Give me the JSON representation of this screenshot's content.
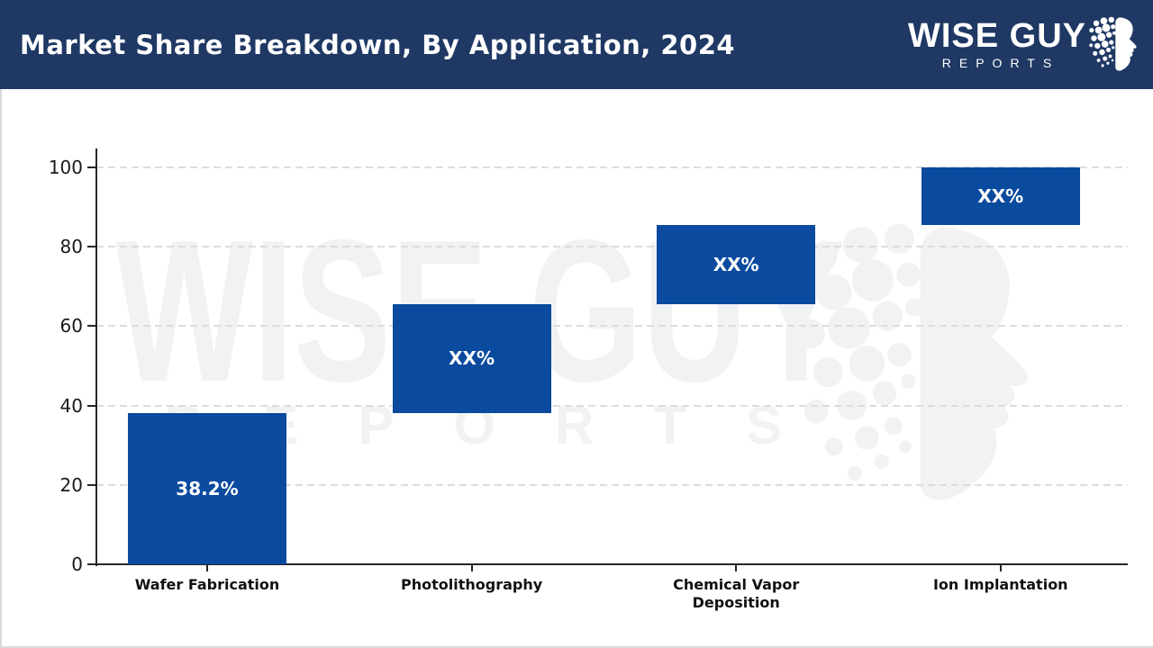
{
  "header": {
    "title": "Market Share Breakdown, By Application, 2024",
    "logo": {
      "line1": "WISE GUY",
      "line2": "REPORTS"
    }
  },
  "watermark": {
    "line1": "WISE GUY",
    "line2": "REPORTS"
  },
  "colors": {
    "header_bg": "#1F3864",
    "header_text": "#FFFFFF",
    "bar": "#0A4A9F",
    "bar_label": "#FFFFFF",
    "axis": "#262626",
    "tick_text": "#1A1A1A",
    "grid": "#DCDCDC",
    "watermark": "#F1F2F4",
    "border": "#D9D9D9"
  },
  "chart_data": {
    "type": "bar",
    "subtype": "waterfall",
    "title": "Market Share Breakdown, By Application, 2024",
    "categories": [
      "Wafer Fabrication",
      "Photolithography",
      "Chemical Vapor Deposition",
      "Ion Implantation"
    ],
    "series": [
      {
        "name": "Market Share (%)",
        "segments": [
          {
            "category": "Wafer Fabrication",
            "start": 0,
            "end": 38.2,
            "label": "38.2%"
          },
          {
            "category": "Photolithography",
            "start": 38.2,
            "end": 65.5,
            "label": "XX%"
          },
          {
            "category": "Chemical Vapor Deposition",
            "start": 65.5,
            "end": 85.5,
            "label": "XX%"
          },
          {
            "category": "Ion Implantation",
            "start": 85.5,
            "end": 100,
            "label": "XX%"
          }
        ]
      }
    ],
    "ylim": [
      0,
      100
    ],
    "yticks": [
      0,
      20,
      40,
      60,
      80,
      100
    ],
    "grid": true,
    "legend": false,
    "xlabel": "",
    "ylabel": ""
  }
}
